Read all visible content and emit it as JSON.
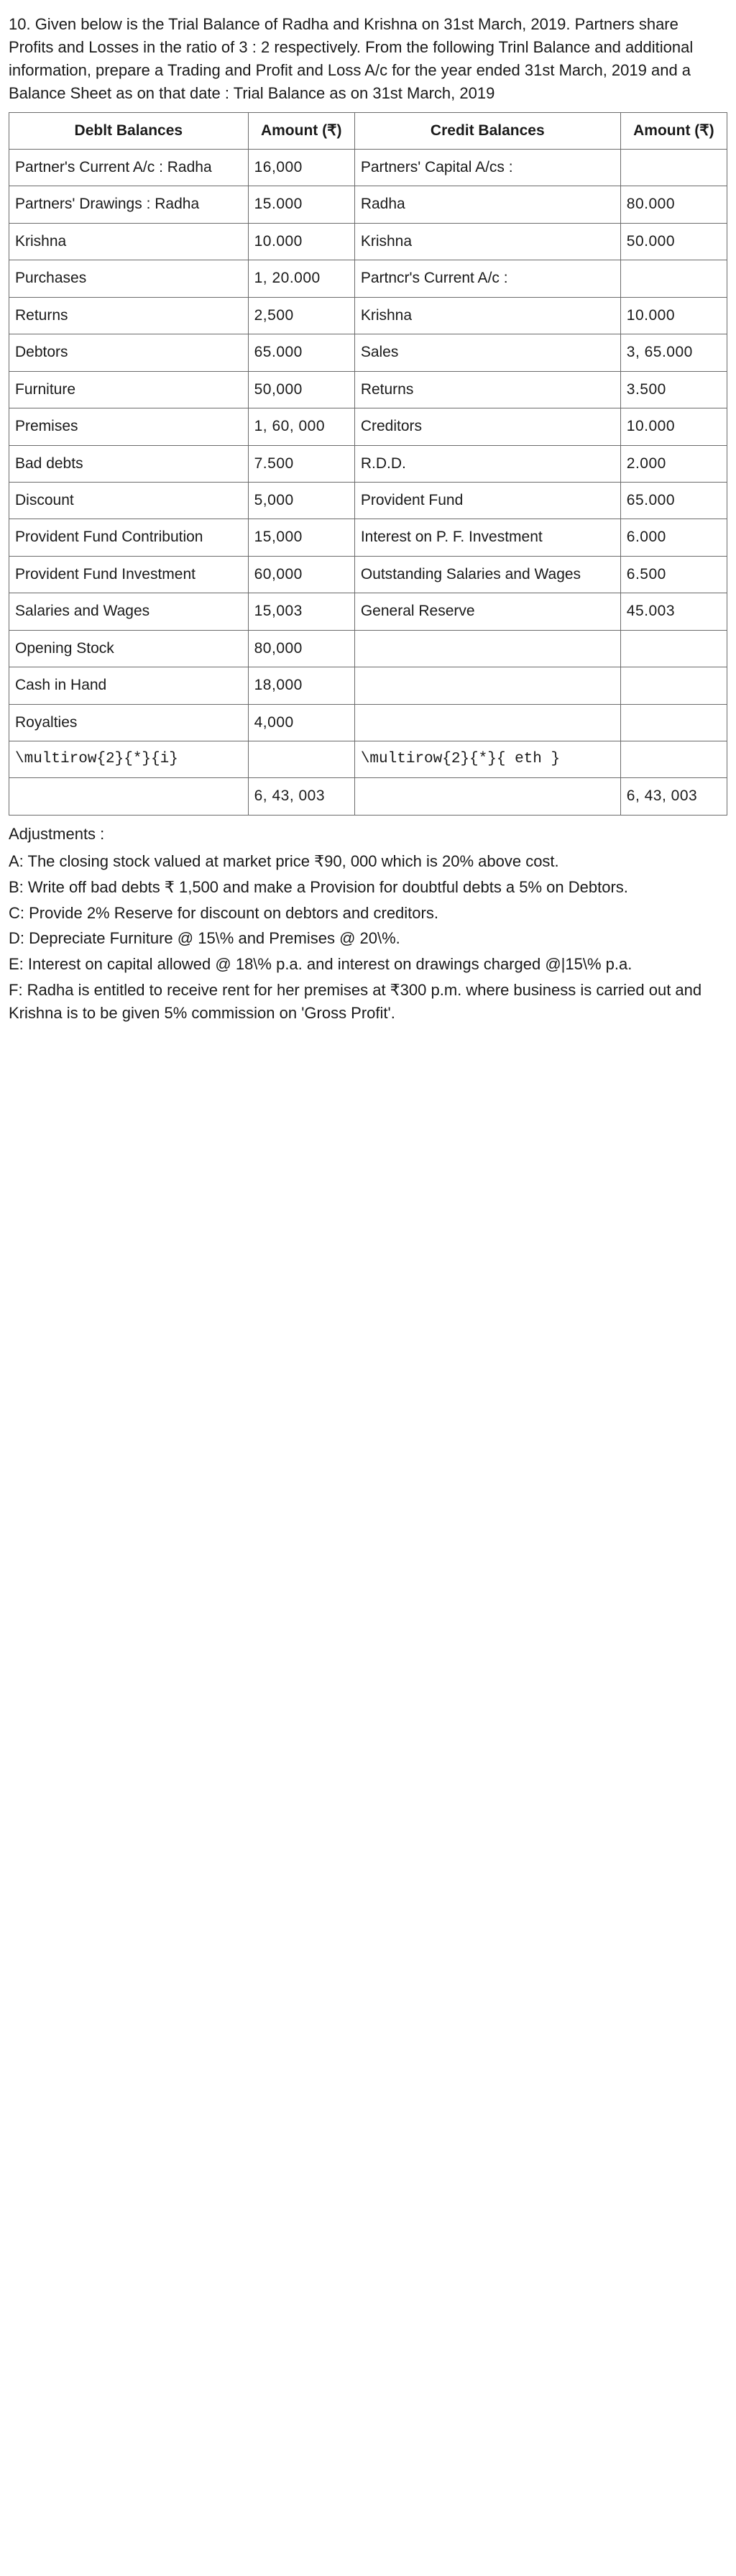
{
  "intro": "10. Given below is the Trial Balance of Radha and Krishna on 31st March, 2019. Partners share Profits and Losses in the ratio of 3 : 2 respectively. From the following Trinl Balance and additional information, prepare a Trading and Profit and Loss A/c for the year ended 31st March, 2019 and a Balance Sheet as on that date : Trial Balance as on 31st March, 2019",
  "table": {
    "head": {
      "c1": "Deblt Balances",
      "c2": "Amount (₹)",
      "c3": "Credit Balances",
      "c4": "Amount (₹)"
    },
    "rows": [
      {
        "d": "Partner's Current A/c : Radha",
        "da": "16,000",
        "c": "Partners' Capital A/cs :",
        "ca": ""
      },
      {
        "d": "Partners' Drawings : Radha",
        "da": "15.000",
        "c": "Radha",
        "ca": "80.000"
      },
      {
        "d": "Krishna",
        "da": "10.000",
        "c": "Krishna",
        "ca": "50.000"
      },
      {
        "d": "Purchases",
        "da": "1, 20.000",
        "c": "Partncr's Current A/c :",
        "ca": ""
      },
      {
        "d": "Returns",
        "da": "2,500",
        "c": "Krishna",
        "ca": "10.000"
      },
      {
        "d": "Debtors",
        "da": "65.000",
        "c": "Sales",
        "ca": "3, 65.000"
      },
      {
        "d": "Furniture",
        "da": "50,000",
        "c": "Returns",
        "ca": "3.500"
      },
      {
        "d": "Premises",
        "da": "1, 60, 000",
        "c": "Creditors",
        "ca": "10.000"
      },
      {
        "d": "Bad debts",
        "da": "7.500",
        "c": "R.D.D.",
        "ca": "2.000"
      },
      {
        "d": "Discount",
        "da": "5,000",
        "c": "Provident Fund",
        "ca": "65.000"
      },
      {
        "d": "Provident Fund Contribution",
        "da": "15,000",
        "c": "Interest on P. F. Investment",
        "ca": "6.000"
      },
      {
        "d": "Provident Fund Investment",
        "da": "60,000",
        "c": "Outstanding Salaries and Wages",
        "ca": "6.500"
      },
      {
        "d": "Salaries and Wages",
        "da": "15,003",
        "c": "General Reserve",
        "ca": "45.003"
      },
      {
        "d": "Opening Stock",
        "da": "80,000",
        "c": "",
        "ca": ""
      },
      {
        "d": "Cash in Hand",
        "da": "18,000",
        "c": "",
        "ca": ""
      },
      {
        "d": "Royalties",
        "da": "4,000",
        "c": "",
        "ca": ""
      },
      {
        "d": "\\multirow{2}{*}{i}",
        "da": "",
        "c": "\\multirow{2}{*}{ eth }",
        "ca": ""
      },
      {
        "d": "",
        "da": "6, 43, 003",
        "c": "",
        "ca": "6, 43, 003"
      }
    ]
  },
  "adjustments": {
    "title": "Adjustments :",
    "lines": [
      "A:  The closing stock valued at market price ₹90, 000 which is 20% above cost.",
      "B:  Write off bad debts ₹ 1,500 and make a Provision for doubtful debts a 5% on Debtors.",
      "C:  Provide 2% Reserve for discount on debtors and creditors.",
      "D:  Depreciate Furniture @ 15\\% and Premises @ 20\\%.",
      "E:  Interest on capital allowed @ 18\\% p.a. and interest on drawings charged @|15\\% p.a.",
      "F:  Radha is entitled to receive rent for her premises at ₹300 p.m. where business is carried out and Krishna is to be given 5% commission on 'Gross Profit'."
    ]
  }
}
